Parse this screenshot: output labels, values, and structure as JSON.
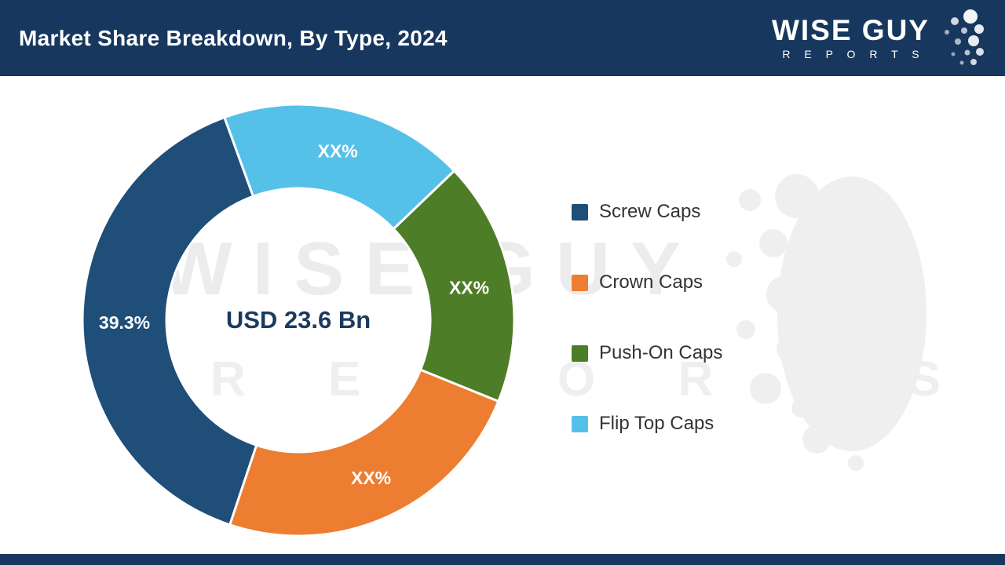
{
  "header": {
    "title": "Market Share Breakdown, By Type, 2024",
    "bg_color": "#17375e",
    "logo": {
      "line1": "WISE GUY",
      "line2": "R E P O R T S"
    }
  },
  "watermark": {
    "line1": "WISE GUY",
    "line2": "R E P O R T S"
  },
  "chart_data": {
    "type": "pie",
    "subtype": "donut",
    "title": "Market Share Breakdown, By Type, 2024",
    "center_label": "USD 23.6 Bn",
    "unit": "percent",
    "segments": [
      {
        "label": "Screw Caps",
        "display": "39.3%",
        "value": 39.3,
        "color": "#1f4e79"
      },
      {
        "label": "Crown Caps",
        "display": "XX%",
        "value": 24.0,
        "color": "#ed7d31"
      },
      {
        "label": "Push-On Caps",
        "display": "XX%",
        "value": 18.3,
        "color": "#4e7d28"
      },
      {
        "label": "Flip Top Caps",
        "display": "XX%",
        "value": 18.4,
        "color": "#55c1e9"
      }
    ],
    "layout": {
      "start_angle_deg": 198.5,
      "draw_order": [
        0,
        3,
        2,
        1
      ],
      "legend_position": "right",
      "donut_inner_ratio": 0.61,
      "grid": false
    }
  },
  "colors": {
    "header_bg": "#17375e",
    "footer_bg": "#17375e",
    "center_text": "#1b3a5e",
    "legend_text": "#333333",
    "watermark": "#ececec"
  }
}
